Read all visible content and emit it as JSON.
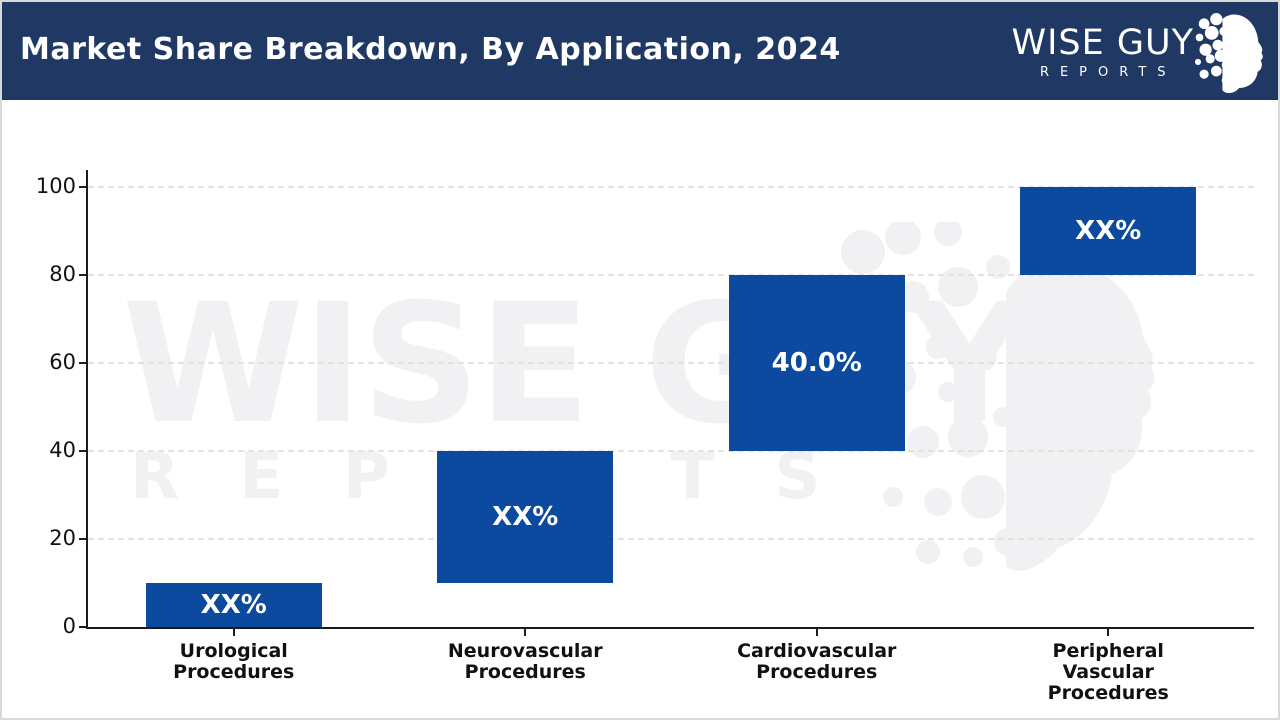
{
  "header": {
    "title": "Market Share Breakdown, By Application, 2024",
    "bg_color": "#1f3864",
    "logo": {
      "line1": "WISE GUY",
      "line2": "REPORTS"
    }
  },
  "watermark": {
    "line1": "WISE GUY",
    "line2": "REPORTS"
  },
  "chart_data": {
    "type": "bar",
    "subtype": "waterfall",
    "title": "Market Share Breakdown, By Application, 2024",
    "categories": [
      "Urological\nProcedures",
      "Neurovascular\nProcedures",
      "Cardiovascular\nProcedures",
      "Peripheral\nVascular\nProcedures"
    ],
    "segments": [
      {
        "category": "Urological Procedures",
        "start": 0,
        "end": 10,
        "label": "XX%"
      },
      {
        "category": "Neurovascular Procedures",
        "start": 10,
        "end": 40,
        "label": "XX%"
      },
      {
        "category": "Cardiovascular Procedures",
        "start": 40,
        "end": 80,
        "label": "40.0%"
      },
      {
        "category": "Peripheral Vascular Procedures",
        "start": 80,
        "end": 100,
        "label": "XX%"
      }
    ],
    "ylim": [
      0,
      100
    ],
    "yticks": [
      0,
      20,
      40,
      60,
      80,
      100
    ],
    "grid": "dashed-horizontal",
    "legend": "none",
    "bar_color": "#0b4a9e",
    "bar_label_color": "#ffffff",
    "axis_color": "#1c1c1c"
  }
}
